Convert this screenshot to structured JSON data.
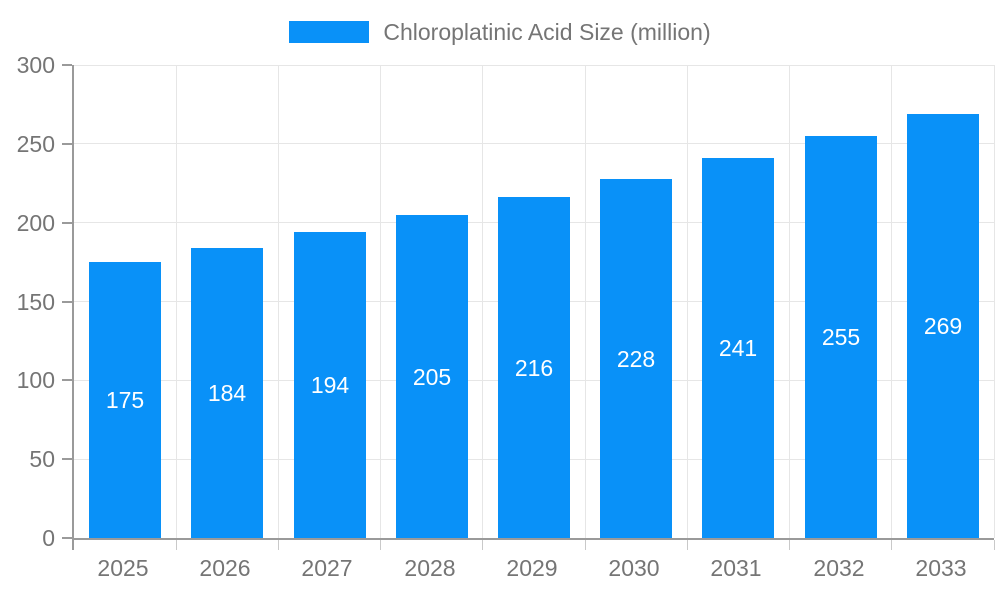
{
  "chart_data": {
    "type": "bar",
    "title": "Chloroplatinic Acid Size (million)",
    "legend_label": "Chloroplatinic Acid Size (million)",
    "categories": [
      "2025",
      "2026",
      "2027",
      "2028",
      "2029",
      "2030",
      "2031",
      "2032",
      "2033"
    ],
    "values": [
      175,
      184,
      194,
      205,
      216,
      228,
      241,
      255,
      269
    ],
    "series": [
      {
        "name": "Chloroplatinic Acid Size (million)",
        "values": [
          175,
          184,
          194,
          205,
          216,
          228,
          241,
          255,
          269
        ]
      }
    ],
    "xlabel": "",
    "ylabel": "",
    "ylim": [
      0,
      300
    ],
    "ytick_step": 50,
    "ytick_labels": [
      "0",
      "50",
      "100",
      "150",
      "200",
      "250",
      "300"
    ],
    "grid": true,
    "legend_position": "top-center",
    "bar_labels_shown": true,
    "bar_label_position": "middle-of-bar",
    "colors": {
      "bar": "#0991f8",
      "bar_label": "#ffffff",
      "text": "#757575",
      "axis": "#9a9a9a",
      "grid": "#e6e6e6",
      "background": "#ffffff"
    }
  }
}
